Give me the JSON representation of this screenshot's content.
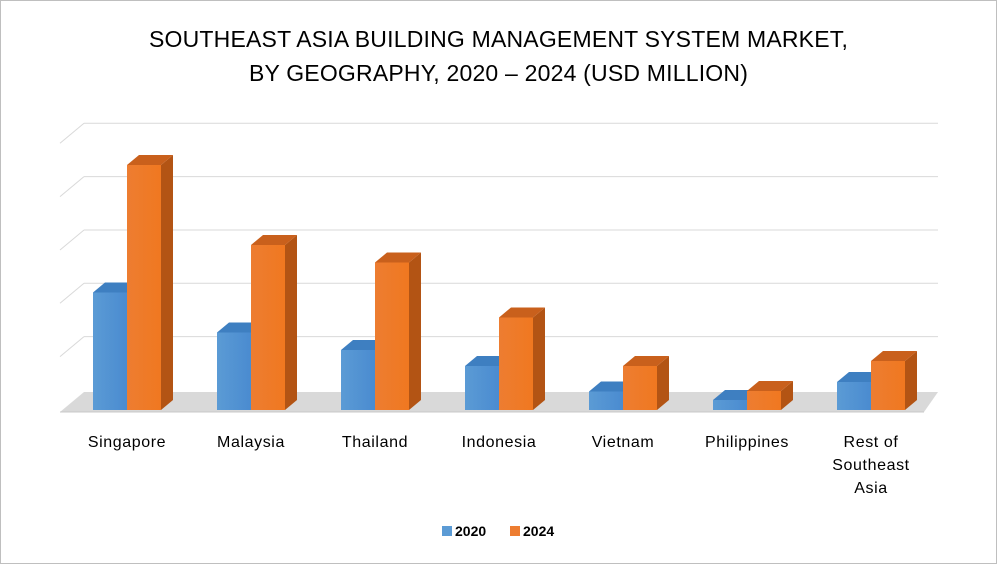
{
  "chart_data": {
    "type": "bar",
    "title": "SOUTHEAST ASIA BUILDING MANAGEMENT SYSTEM MARKET, BY GEOGRAPHY, 2020 – 2024 (USD MILLION)",
    "title_lines": [
      "SOUTHEAST ASIA BUILDING MANAGEMENT SYSTEM MARKET,",
      "BY GEOGRAPHY, 2020 – 2024 (USD MILLION)"
    ],
    "categories": [
      "Singapore",
      "Malaysia",
      "Thailand",
      "Indonesia",
      "Vietnam",
      "Philippines",
      "Rest of Southeast Asia"
    ],
    "category_lines": [
      [
        "Singapore"
      ],
      [
        "Malaysia"
      ],
      [
        "Thailand"
      ],
      [
        "Indonesia"
      ],
      [
        "Vietnam"
      ],
      [
        "Philippines"
      ],
      [
        "Rest of",
        "Southeast",
        "Asia"
      ]
    ],
    "series": [
      {
        "name": "2020",
        "values": [
          2.35,
          1.55,
          1.2,
          0.88,
          0.37,
          0.2,
          0.56
        ]
      },
      {
        "name": "2024",
        "values": [
          4.9,
          3.3,
          2.95,
          1.85,
          0.88,
          0.38,
          0.98
        ]
      }
    ],
    "ylim": [
      0,
      5.5
    ],
    "y_tick_labels_shown": false,
    "grid": true,
    "legend_position": "bottom",
    "three_d": true,
    "colors": {
      "series_2020": "#5b9bd5",
      "series_2020_top": "#3e7fc1",
      "series_2020_side": "#2e6aa8",
      "series_2024": "#ed7d31",
      "series_2024_top": "#c9601c",
      "series_2024_side": "#b35414",
      "grid": "#d9d9d9",
      "floor": "#d9d9d9"
    }
  }
}
